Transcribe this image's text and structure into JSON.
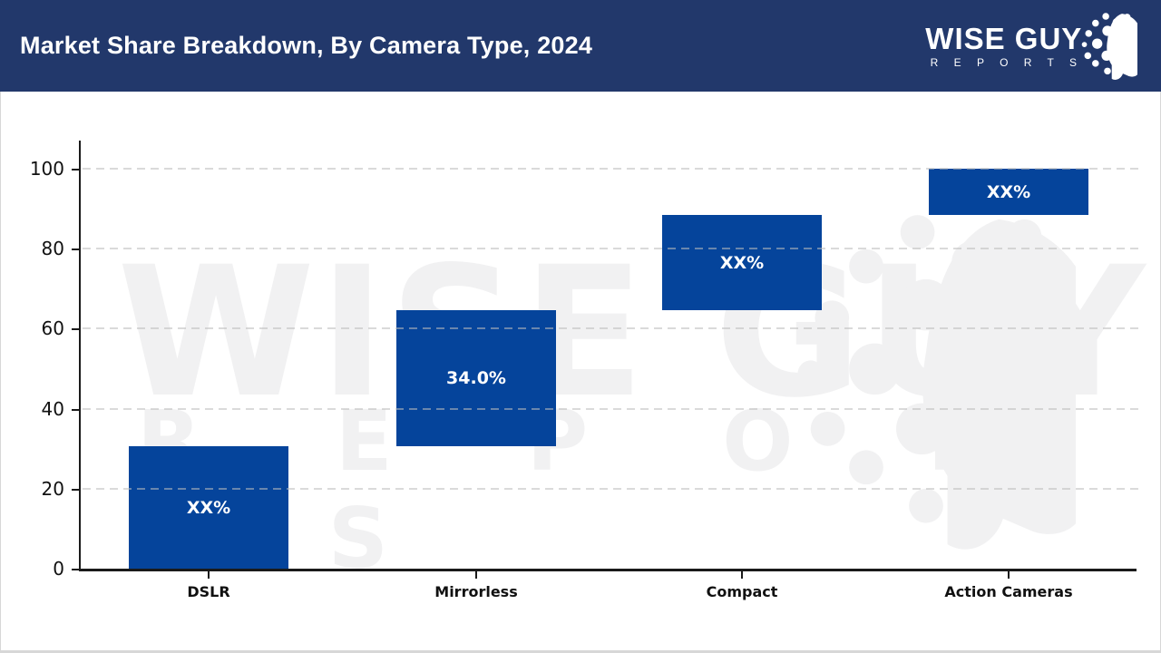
{
  "header": {
    "title": "Market Share Breakdown, By Camera Type, 2024",
    "logo": {
      "line1": "WISE GUY",
      "line2": "R E P O R T S"
    }
  },
  "watermark": {
    "line1": "WISE GUY",
    "line2": "R E P O R T S"
  },
  "colors": {
    "header_bg": "#22386B",
    "bar": "#05449B",
    "axis": "#1A1A1A",
    "grid": "#BCBCBC",
    "tick_text": "#111111",
    "bar_label_text": "#FFFFFF",
    "watermark": "#F1F1F2",
    "border": "#D7D7D7"
  },
  "chart_data": {
    "type": "bar",
    "subtype": "waterfall",
    "title": "Market Share Breakdown, By Camera Type, 2024",
    "xlabel": "",
    "ylabel": "",
    "categories": [
      "DSLR",
      "Mirrorless",
      "Compact",
      "Action Cameras"
    ],
    "segments": [
      {
        "category": "DSLR",
        "start": 0,
        "end": 30.6,
        "label": "XX%"
      },
      {
        "category": "Mirrorless",
        "start": 30.6,
        "end": 64.6,
        "label": "34.0%"
      },
      {
        "category": "Compact",
        "start": 64.6,
        "end": 88.4,
        "label": "XX%"
      },
      {
        "category": "Action Cameras",
        "start": 88.4,
        "end": 100,
        "label": "XX%"
      }
    ],
    "yticks": [
      0,
      20,
      40,
      60,
      80,
      100
    ],
    "ylim": [
      0,
      107
    ],
    "grid": "horizontal-dashed",
    "legend": "none"
  }
}
